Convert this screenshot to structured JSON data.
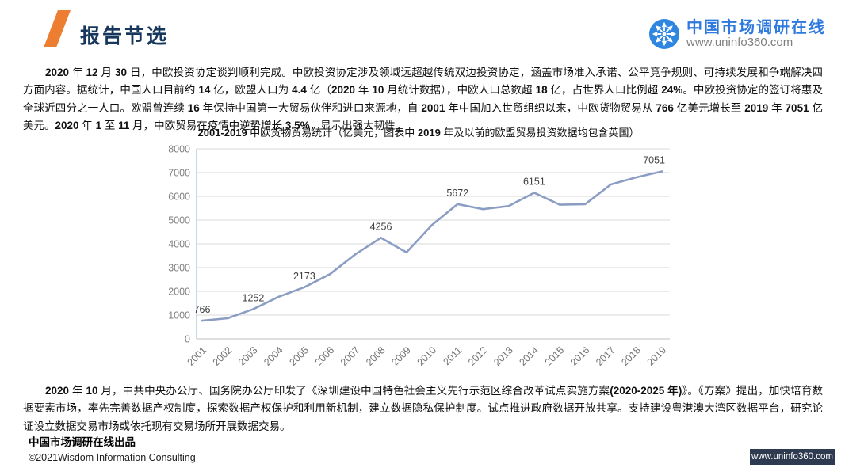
{
  "header": {
    "title": "报告节选"
  },
  "logo": {
    "name": "中国市场调研在线",
    "url": "www.uninfo360.com"
  },
  "body": {
    "paragraph1": "**2020** 年 **12** 月 **30** 日，中欧投资协定谈判顺利完成。中欧投资协定涉及领域远超越传统双边投资协定，涵盖市场准入承诺、公平竞争规则、可持续发展和争端解决四方面内容。据统计，中国人口目前约 **14** 亿，欧盟人口为 **4.4** 亿（**2020** 年 **10** 月统计数据），中欧人口总数超 **18** 亿，占世界人口比例超 **24%**。中欧投资协定的签订将惠及全球近四分之一人口。欧盟曾连续 **16** 年保持中国第一大贸易伙伴和进口来源地，自 **2001** 年中国加入世贸组织以来，中欧货物贸易从 **766** 亿美元增长至 **2019** 年 **7051** 亿美元。**2020** 年 **1** 至 **11** 月，中欧贸易在疫情中逆势增长 **3.5%**，显示出强大韧性。",
    "paragraph2": "**2020** 年 **10** 月，中共中央办公厅、国务院办公厅印发了《深圳建设中国特色社会主义先行示范区综合改革试点实施方案**(2020-2025 年)**》。《方案》提出，加快培育数据要素市场，率先完善数据产权制度，探索数据产权保护和利用新机制，建立数据隐私保护制度。试点推进政府数据开放共享。支持建设粤港澳大湾区数据平台，研究论证设立数据交易市场或依托现有交易场所开展数据交易。"
  },
  "footer": {
    "producer": "中国市场调研在线出品",
    "copyright": "©2021Wisdom Information Consulting",
    "badge_url": "www.uninfo360.com"
  },
  "colors": {
    "accent_orange": "#ED7D31",
    "title_navy": "#17375D",
    "brand_blue": "#2E86E0",
    "badge_navy": "#2E3A50",
    "line_blue": "#8B9DC3",
    "grid_gray": "#D9D9D9",
    "axis_blue": "#A9C4DE",
    "tick_label_gray": "#7F7F7F"
  },
  "chart_data": {
    "type": "line",
    "title": "**2001-2019** 中欧货物贸易统计（亿美元，图表中 **2019** 年及以前的欧盟贸易投资数据均包含英国）",
    "x": [
      "2001",
      "2002",
      "2003",
      "2004",
      "2005",
      "2006",
      "2007",
      "2008",
      "2009",
      "2010",
      "2011",
      "2012",
      "2013",
      "2014",
      "2015",
      "2016",
      "2017",
      "2018",
      "2019"
    ],
    "values": [
      766,
      867,
      1252,
      1772,
      2173,
      2723,
      3561,
      4256,
      3640,
      4797,
      5672,
      5460,
      5591,
      6151,
      5647,
      5670,
      6500,
      6800,
      7051
    ],
    "labeled_indices": [
      0,
      2,
      4,
      7,
      10,
      13,
      18
    ],
    "ylim": [
      0,
      8000
    ],
    "ytick_step": 1000,
    "grid": true,
    "legend": "none",
    "xlabel": "",
    "ylabel": ""
  }
}
